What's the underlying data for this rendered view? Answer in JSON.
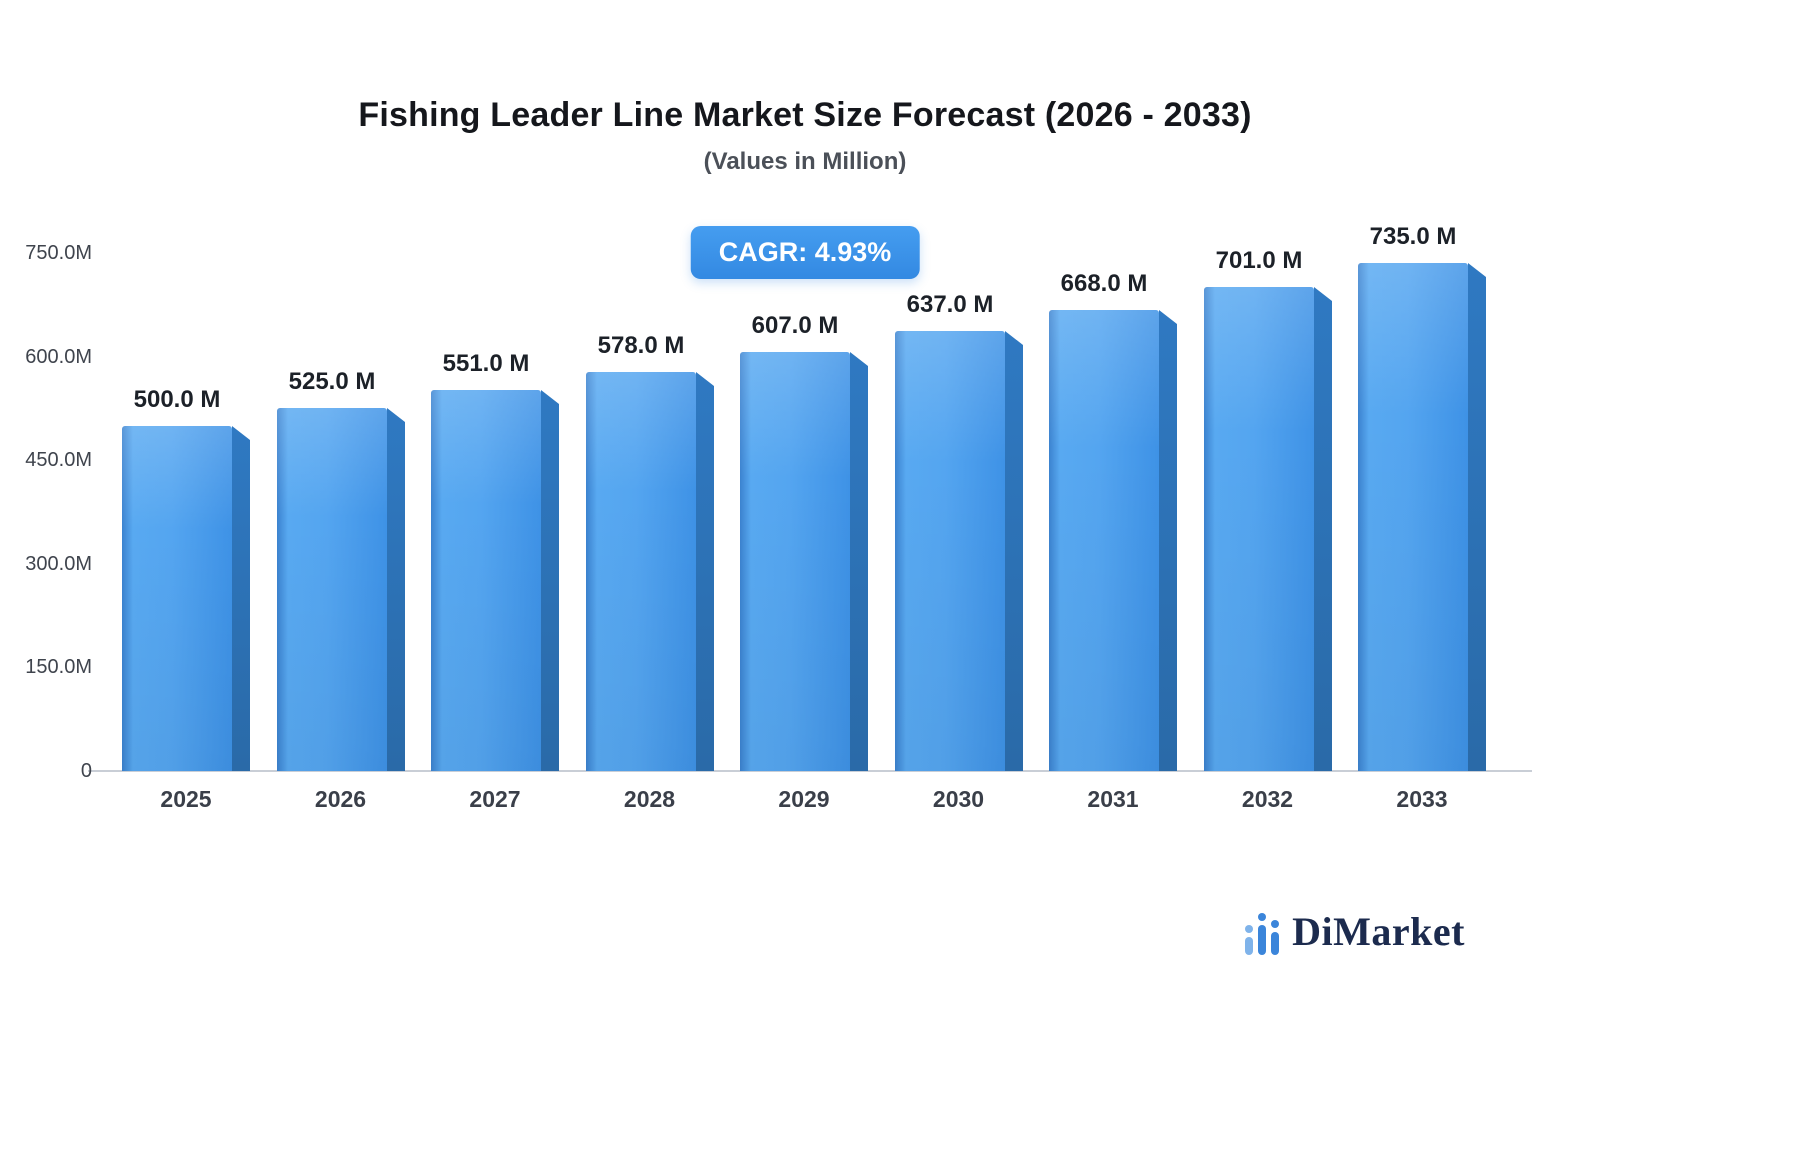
{
  "chart_data": {
    "type": "bar",
    "title": "Fishing Leader Line Market Size Forecast (2026 - 2033)",
    "subtitle": "(Values in Million)",
    "cagr_label": "CAGR: 4.93%",
    "categories": [
      "2025",
      "2026",
      "2027",
      "2028",
      "2029",
      "2030",
      "2031",
      "2032",
      "2033"
    ],
    "values": [
      500.0,
      525.0,
      551.0,
      578.0,
      607.0,
      637.0,
      668.0,
      701.0,
      735.0
    ],
    "value_labels": [
      "500.0 M",
      "525.0 M",
      "551.0 M",
      "578.0 M",
      "607.0 M",
      "637.0 M",
      "668.0 M",
      "701.0 M",
      "735.0 M"
    ],
    "ylabel_ticks": [
      "750.0M",
      "600.0M",
      "450.0M",
      "300.0M",
      "150.0M",
      "0"
    ],
    "ytick_values": [
      750,
      600,
      450,
      300,
      150,
      0
    ],
    "ylim": [
      0,
      750
    ],
    "grid": false,
    "legend_position": "none",
    "bar_color_light": "#58a9f1",
    "bar_color_main": "#3e92e6",
    "bar_side_color": "#2a6aa8",
    "accent": "#3389e2"
  },
  "logo": {
    "text": "DiMarket"
  }
}
